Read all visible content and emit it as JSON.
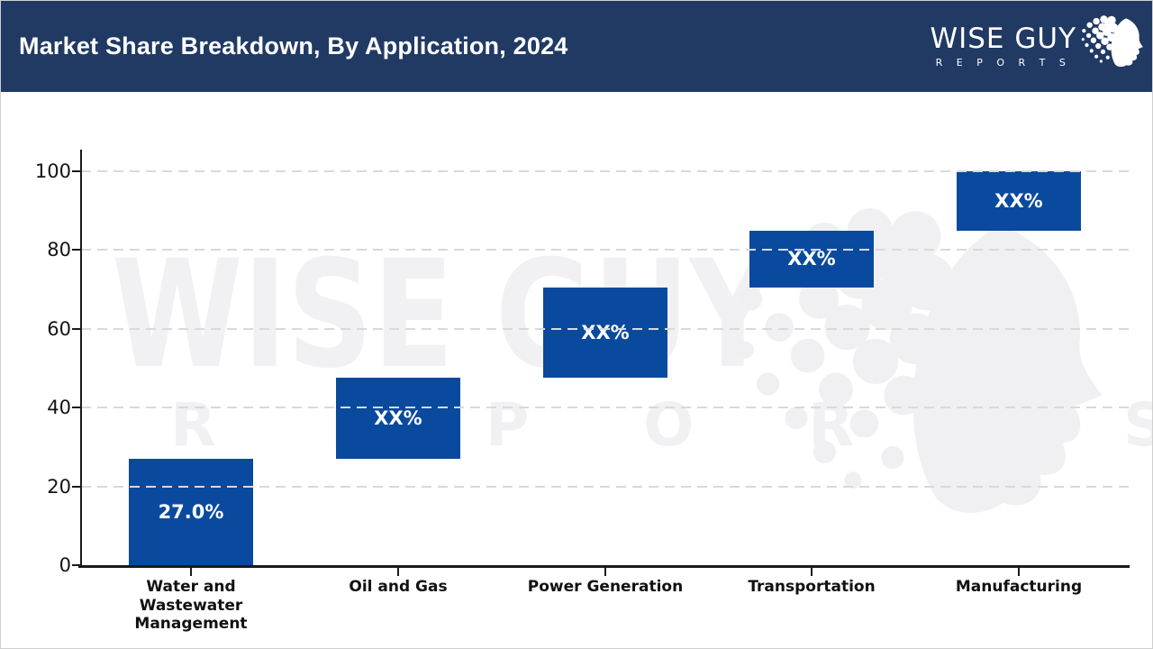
{
  "header": {
    "bg_color": "#213A64",
    "title": "Market Share Breakdown, By Application, 2024",
    "logo": {
      "name_line": "WISE GUY",
      "sub_line": "R E P O R T S"
    }
  },
  "watermark": {
    "line1": "WISE GUY",
    "line2": "REPORTS",
    "line2_display": "R E P O R T S"
  },
  "chart_data": {
    "type": "bar",
    "variant": "waterfall",
    "title": "Market Share Breakdown, By Application, 2024",
    "xlabel": "",
    "ylabel": "",
    "categories": [
      "Water and Wastewater Management",
      "Oil and Gas",
      "Power Generation",
      "Transportation",
      "Manufacturing"
    ],
    "segments": [
      {
        "category_lines": [
          "Water and",
          "Wastewater",
          "Management"
        ],
        "value_label": "27.0%",
        "start": 0,
        "end": 27
      },
      {
        "category_lines": [
          "Oil and Gas"
        ],
        "value_label": "XX%",
        "start": 27,
        "end": 47.5
      },
      {
        "category_lines": [
          "Power Generation"
        ],
        "value_label": "XX%",
        "start": 47.5,
        "end": 70.5
      },
      {
        "category_lines": [
          "Transportation"
        ],
        "value_label": "XX%",
        "start": 70.5,
        "end": 85
      },
      {
        "category_lines": [
          "Manufacturing"
        ],
        "value_label": "XX%",
        "start": 85,
        "end": 100
      }
    ],
    "y_ticks": [
      0,
      20,
      40,
      60,
      80,
      100
    ],
    "ylim": [
      0,
      105
    ],
    "bar_color": "#0A4A9E",
    "value_label_color": "#FFFFFF",
    "axis_color": "#1A1A1A",
    "grid": {
      "axis": "y",
      "style": "dashed",
      "color": "#D9D9D9",
      "drawn_above_bars": true
    },
    "legend": null
  }
}
